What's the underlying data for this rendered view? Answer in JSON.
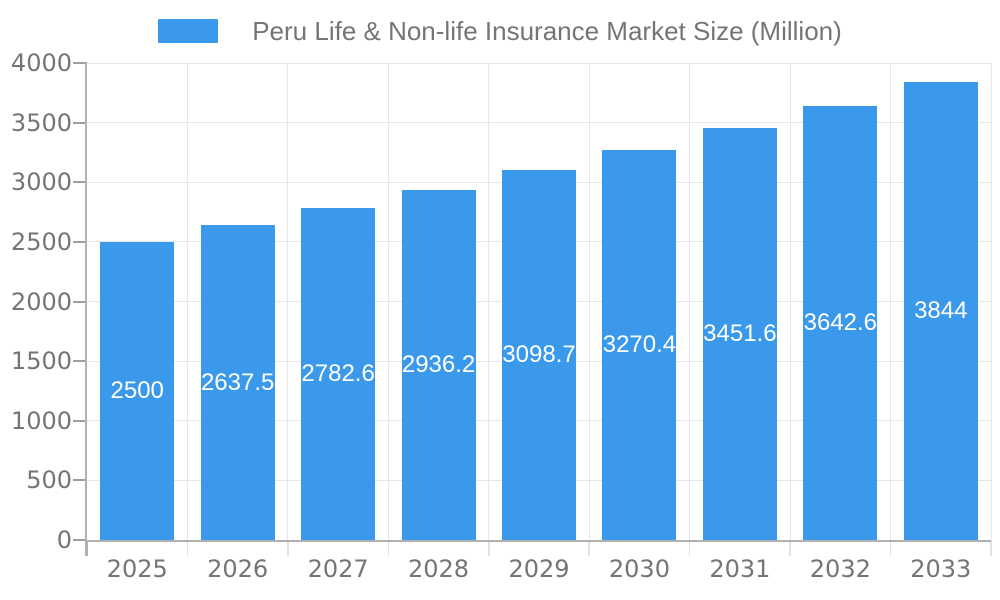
{
  "legend": {
    "label": "Peru Life & Non-life Insurance Market Size (Million)"
  },
  "chart_data": {
    "type": "bar",
    "title": "Peru Life & Non-life Insurance Market Size (Million)",
    "series_name": "Peru Life & Non-life Insurance Market Size (Million)",
    "categories": [
      "2025",
      "2026",
      "2027",
      "2028",
      "2029",
      "2030",
      "2031",
      "2032",
      "2033"
    ],
    "values": [
      2500,
      2637.5,
      2782.6,
      2936.2,
      3098.7,
      3270.4,
      3451.6,
      3642.6,
      3844
    ],
    "value_labels": [
      "2500",
      "2637.5",
      "2782.6",
      "2936.2",
      "3098.7",
      "3270.4",
      "3451.6",
      "3642.6",
      "3844"
    ],
    "xlabel": "",
    "ylabel": "",
    "ylim": [
      0,
      4000
    ],
    "y_tick_step": 500,
    "y_tick_labels": [
      "0",
      "500",
      "1000",
      "1500",
      "2000",
      "2500",
      "3000",
      "3500",
      "4000"
    ],
    "grid": true,
    "legend_position": "top",
    "bar_label_position": "inside-center",
    "colors": {
      "bar": "#3B99EC",
      "bar_label_text": "#ffffff",
      "axis_text": "#757575",
      "title_text": "#757575",
      "grid_line": "#e6e6e6",
      "axis_line": "#b0b0b0",
      "y_tick": "#9e9e9e",
      "x_tick": "#e2e2e2",
      "background": "#ffffff"
    }
  }
}
